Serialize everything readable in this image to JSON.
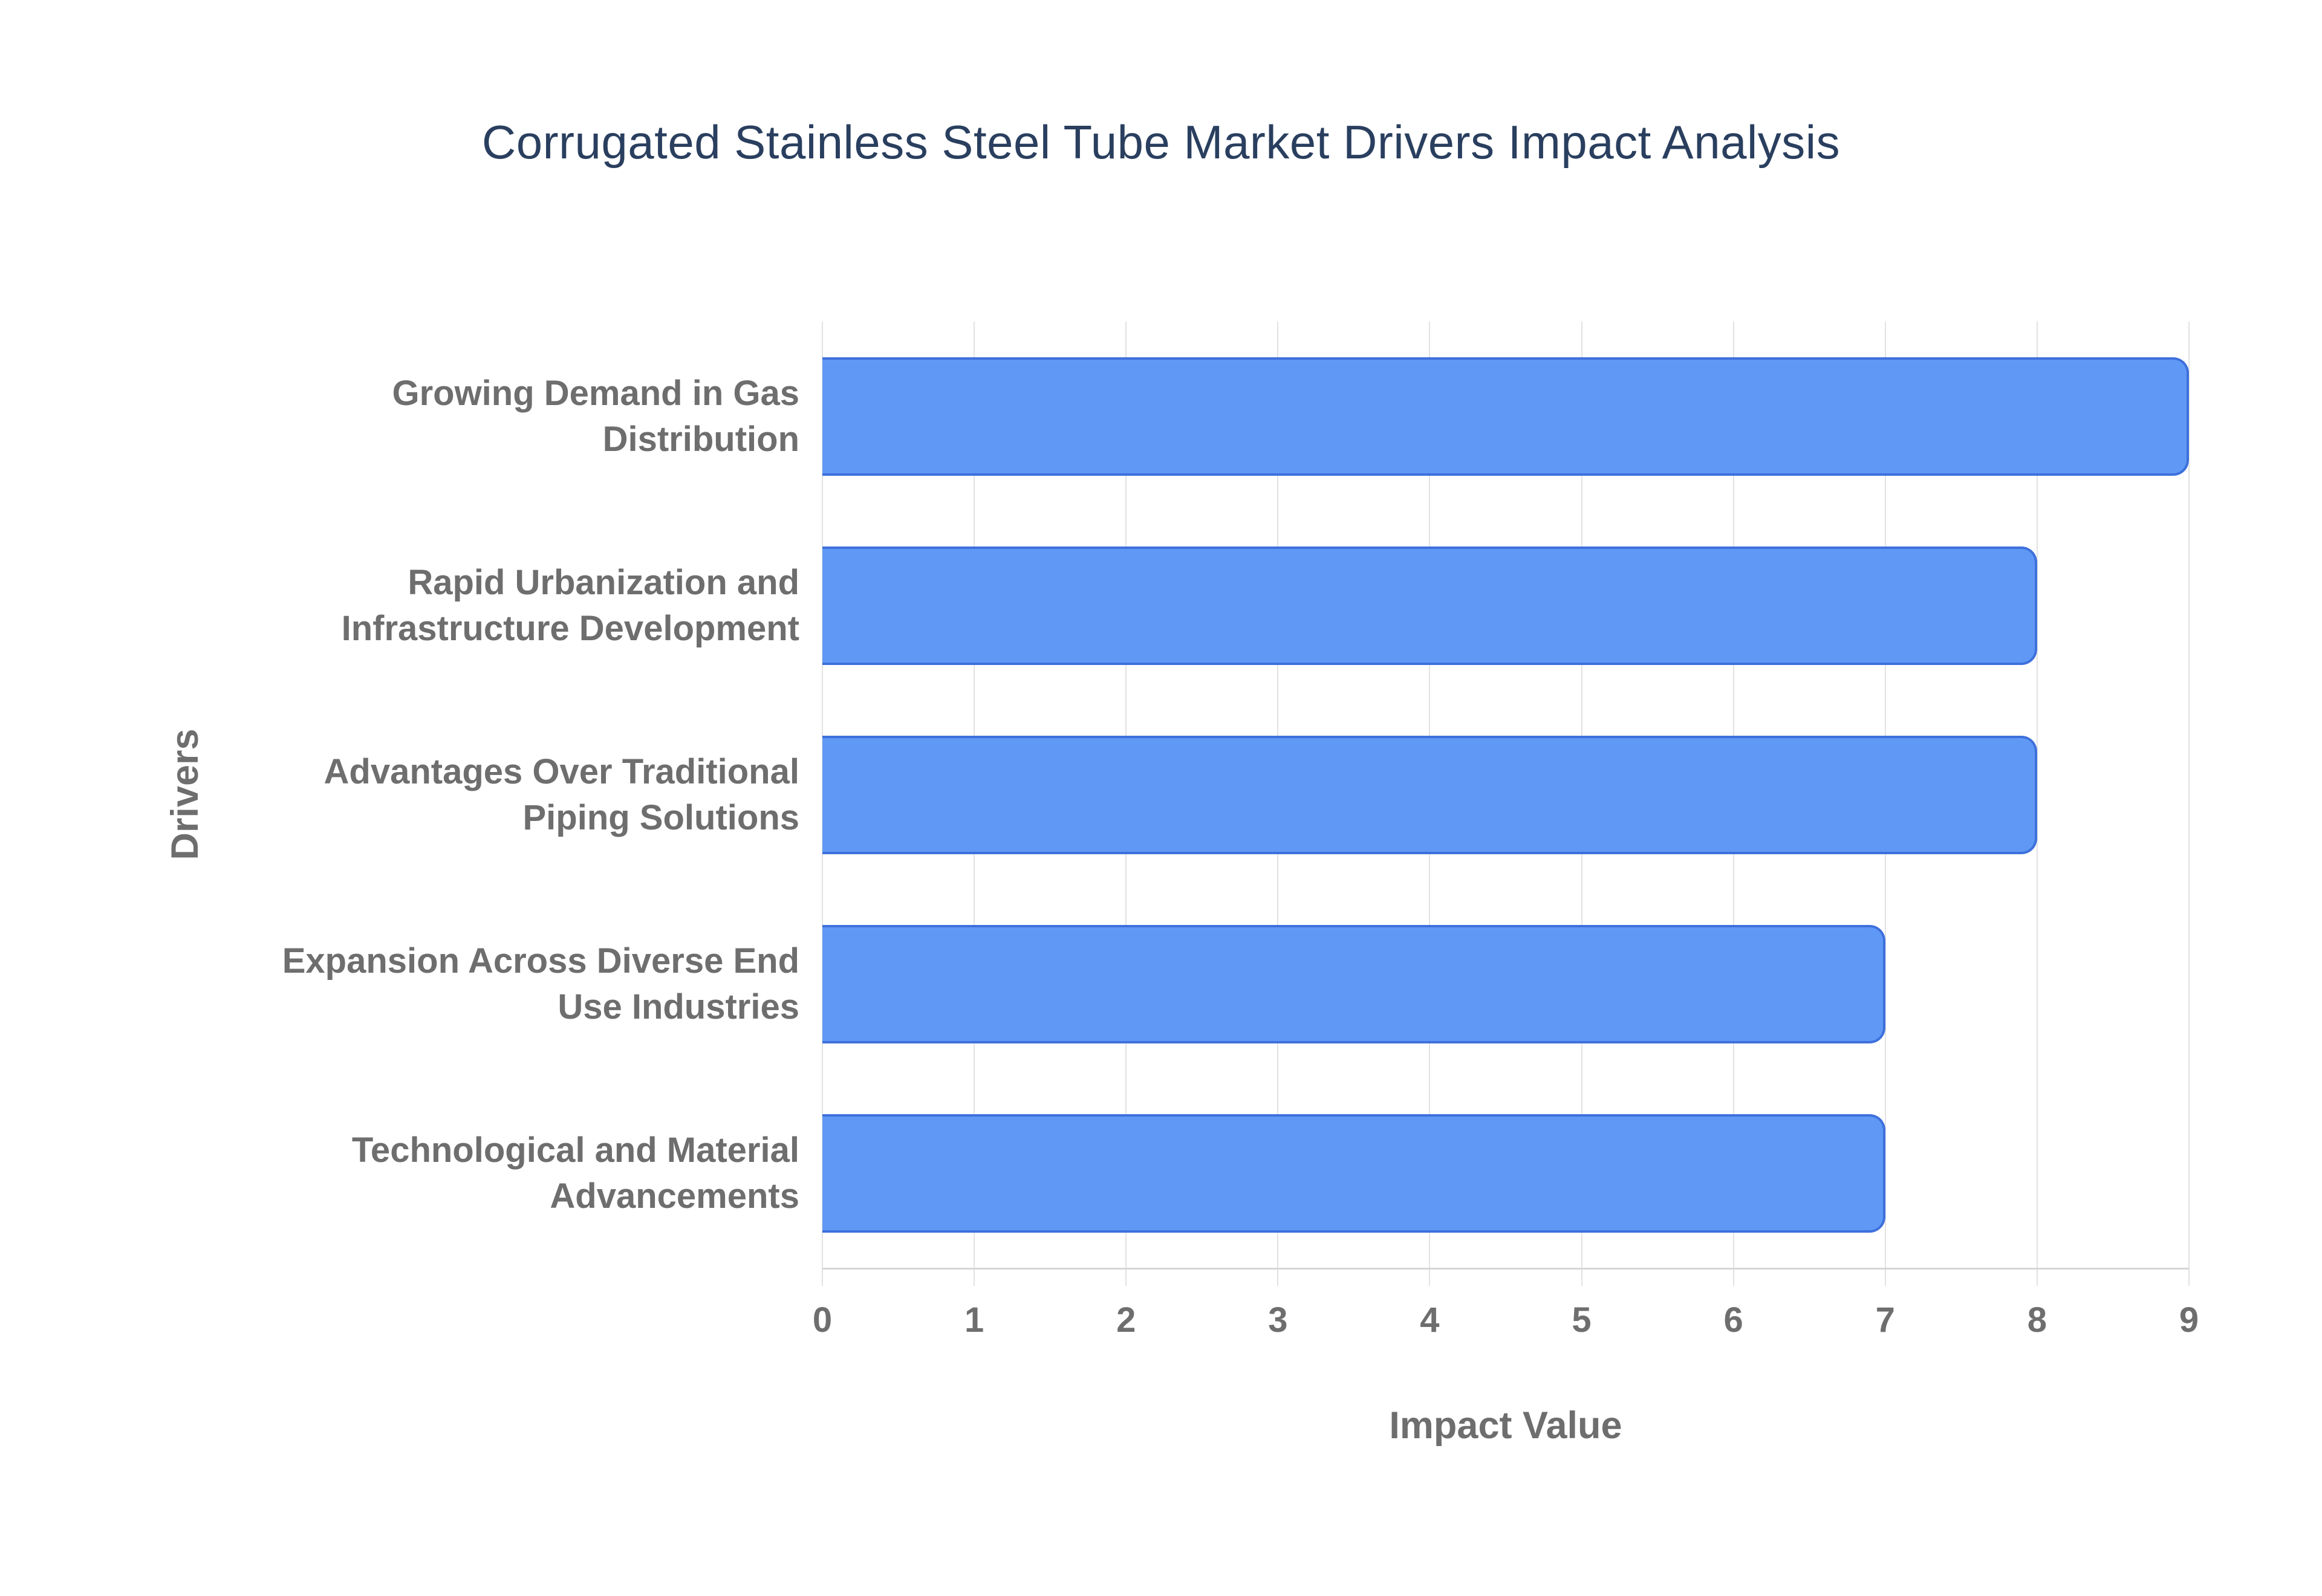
{
  "chart_data": {
    "type": "bar",
    "orientation": "horizontal",
    "title": "Corrugated Stainless Steel Tube Market Drivers Impact Analysis",
    "categories": [
      "Growing Demand in Gas Distribution",
      "Rapid Urbanization and Infrastructure Development",
      "Advantages Over Traditional Piping Solutions",
      "Expansion Across Diverse End Use Industries",
      "Technological and Material Advancements"
    ],
    "values": [
      9,
      8,
      8,
      7,
      7
    ],
    "xlabel": "Impact Value",
    "ylabel": "Drivers",
    "xlim": [
      0,
      9
    ],
    "xticks": [
      "0",
      "1",
      "2",
      "3",
      "4",
      "5",
      "6",
      "7",
      "8",
      "9"
    ],
    "grid": "vertical",
    "legend_position": "none",
    "colors": {
      "bar_fill": "#5f99f5",
      "bar_border": "#3e70dc",
      "gridline": "#e2e2e2",
      "axis_line": "#d6d6d6",
      "label_text": "#6e6e6e",
      "title_text": "#2a3f5f",
      "background": "#ffffff"
    }
  }
}
